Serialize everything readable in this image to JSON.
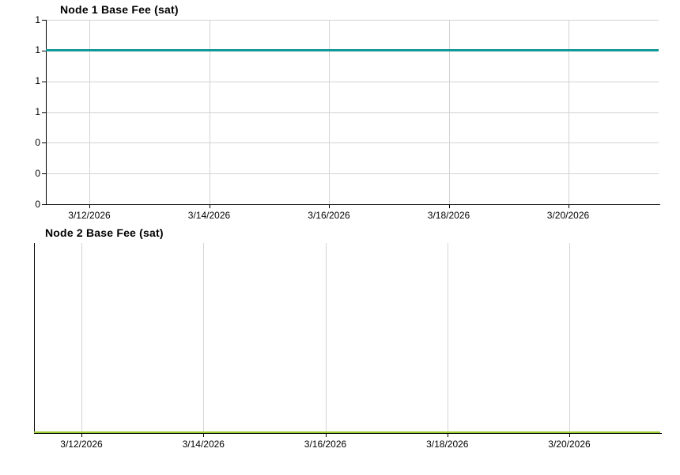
{
  "page": {
    "background": "#ffffff",
    "gridline_color": "#d3d3d3",
    "axis_color": "#000000"
  },
  "chart_data": [
    {
      "type": "line",
      "title": "Node 1 Base Fee (sat)",
      "xlabel": "",
      "ylabel": "",
      "x_tick_labels": [
        "3/12/2026",
        "3/14/2026",
        "3/16/2026",
        "3/18/2026",
        "3/20/2026"
      ],
      "y_tick_labels": [
        "1",
        "1",
        "1",
        "1",
        "0",
        "0",
        "0"
      ],
      "ylim": [
        0,
        1.2
      ],
      "grid": true,
      "legend_position": "none",
      "series": [
        {
          "name": "Node 1 Base Fee",
          "color": "#14999b",
          "shape": "constant-horizontal-line",
          "constant_value": 1.0,
          "x_span": [
            "3/11/2026",
            "3/21/2026"
          ]
        }
      ]
    },
    {
      "type": "line",
      "title": "Node 2 Base Fee (sat)",
      "xlabel": "",
      "ylabel": "",
      "x_tick_labels": [
        "3/12/2026",
        "3/14/2026",
        "3/16/2026",
        "3/18/2026",
        "3/20/2026"
      ],
      "y_tick_labels": [],
      "ylim": [
        0,
        1
      ],
      "grid": true,
      "legend_position": "none",
      "series": [
        {
          "name": "Node 2 Base Fee",
          "color": "#9acd32",
          "shape": "constant-horizontal-line",
          "constant_value": 0,
          "x_span": [
            "3/11/2026",
            "3/21/2026"
          ]
        }
      ]
    }
  ]
}
